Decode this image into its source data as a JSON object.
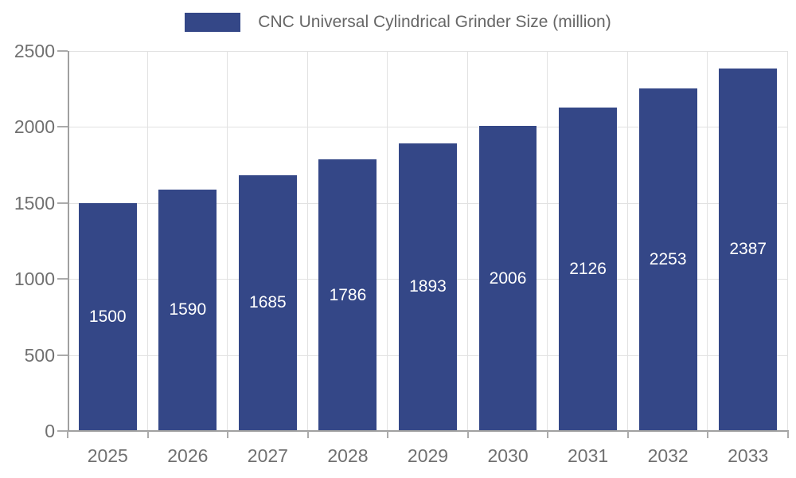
{
  "chart_data": {
    "type": "bar",
    "title": "",
    "legend_label": "CNC Universal Cylindrical Grinder Size (million)",
    "legend_position": "top-center",
    "categories": [
      "2025",
      "2026",
      "2027",
      "2028",
      "2029",
      "2030",
      "2031",
      "2032",
      "2033"
    ],
    "values": [
      1500,
      1590,
      1685,
      1786,
      1893,
      2006,
      2126,
      2253,
      2387
    ],
    "xlabel": "",
    "ylabel": "",
    "ylim": [
      0,
      2500
    ],
    "yticks": [
      0,
      500,
      1000,
      1500,
      2000,
      2500
    ],
    "grid": true,
    "value_labels": "inside-center"
  },
  "colors": {
    "bar": "#344787",
    "grid": "#e2e2e2",
    "axis": "#a0a0a0",
    "tick": "#ababab",
    "tick_label": "#707070",
    "legend_text": "#666666",
    "value_label": "#ffffff",
    "background": "#ffffff"
  }
}
